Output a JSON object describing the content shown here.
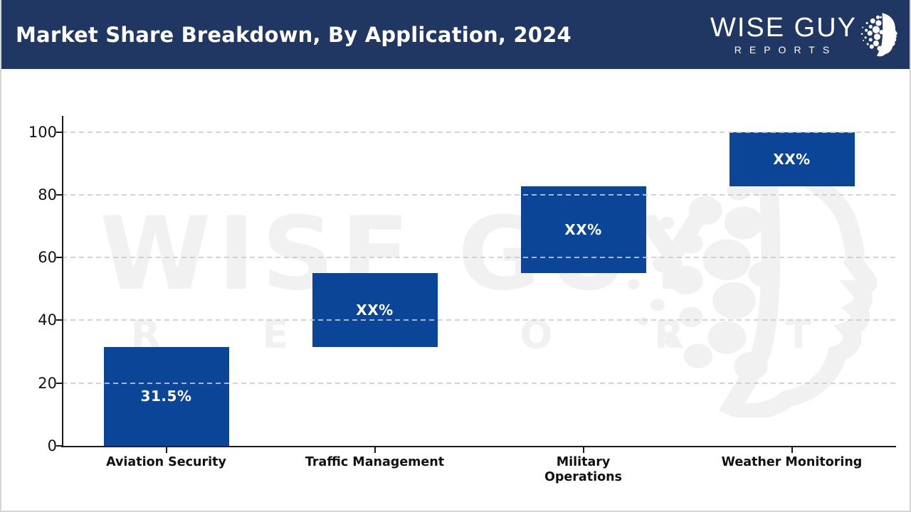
{
  "header": {
    "title": "Market Share Breakdown, By Application, 2024",
    "bg_color": "#203663",
    "logo": {
      "line1": "WISE GUY",
      "line2": "REPORTS"
    }
  },
  "watermark": {
    "line1": "WISE GUY",
    "line2": "R E P O R T S",
    "color": "#f1f1f1"
  },
  "chart_data": {
    "type": "bar",
    "subtype": "floating-waterfall",
    "title": "Market Share Breakdown, By Application, 2024",
    "categories": [
      "Aviation Security",
      "Traffic Management",
      "Military Operations",
      "Weather Monitoring"
    ],
    "x_tick_labels": [
      "Aviation Security",
      "Traffic Management",
      "Military\nOperations",
      "Weather Monitoring"
    ],
    "segments": [
      {
        "category": "Aviation Security",
        "start": 0,
        "end": 31.5,
        "label": "31.5%"
      },
      {
        "category": "Traffic Management",
        "start": 31.5,
        "end": 55,
        "label": "XX%"
      },
      {
        "category": "Military Operations",
        "start": 55,
        "end": 82.6,
        "label": "XX%"
      },
      {
        "category": "Weather Monitoring",
        "start": 82.6,
        "end": 100,
        "label": "XX%"
      }
    ],
    "y_ticks": [
      0,
      20,
      40,
      60,
      80,
      100
    ],
    "ylim": [
      0,
      105
    ],
    "xlabel": "",
    "ylabel": "",
    "grid": true,
    "grid_style": "dashed",
    "grid_color": "#d4d4d4",
    "legend": false,
    "bar_color": "#0b4598",
    "bar_label_color": "#ffffff",
    "axis_color": "#1a1a1a"
  }
}
